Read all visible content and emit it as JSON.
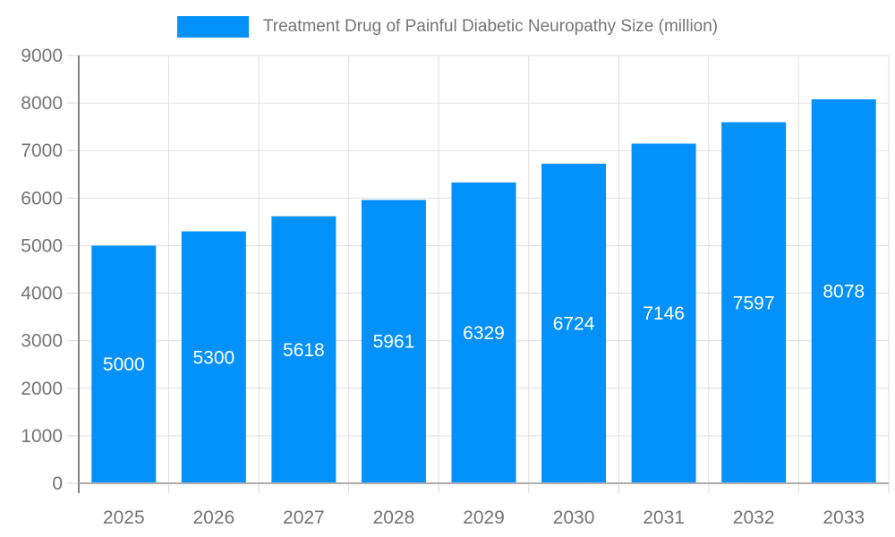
{
  "legend": {
    "label": "Treatment Drug of Painful Diabetic Neuropathy Size (million)"
  },
  "chart_data": {
    "type": "bar",
    "title": "Treatment Drug of Painful Diabetic Neuropathy Size (million)",
    "categories": [
      "2025",
      "2026",
      "2027",
      "2028",
      "2029",
      "2030",
      "2031",
      "2032",
      "2033"
    ],
    "values": [
      5000,
      5300,
      5618,
      5961,
      6329,
      6724,
      7146,
      7597,
      8078
    ],
    "series": [
      {
        "name": "Treatment Drug of Painful Diabetic Neuropathy Size (million)",
        "values": [
          5000,
          5300,
          5618,
          5961,
          6329,
          6724,
          7146,
          7597,
          8078
        ]
      }
    ],
    "xlabel": "",
    "ylabel": "",
    "ylim": [
      0,
      9000
    ],
    "yticks": [
      0,
      1000,
      2000,
      3000,
      4000,
      5000,
      6000,
      7000,
      8000,
      9000
    ],
    "grid": true,
    "legend_position": "top",
    "bar_labels_inside": true,
    "colors": {
      "bar": "#0591FA",
      "bar_label": "#FFFFFF",
      "axis_text": "#757575",
      "gridline": "#E0E0E0",
      "tick": "#D9D9D9",
      "y_axis_line": "#848484",
      "x_axis_line": "#ADADAD"
    }
  }
}
